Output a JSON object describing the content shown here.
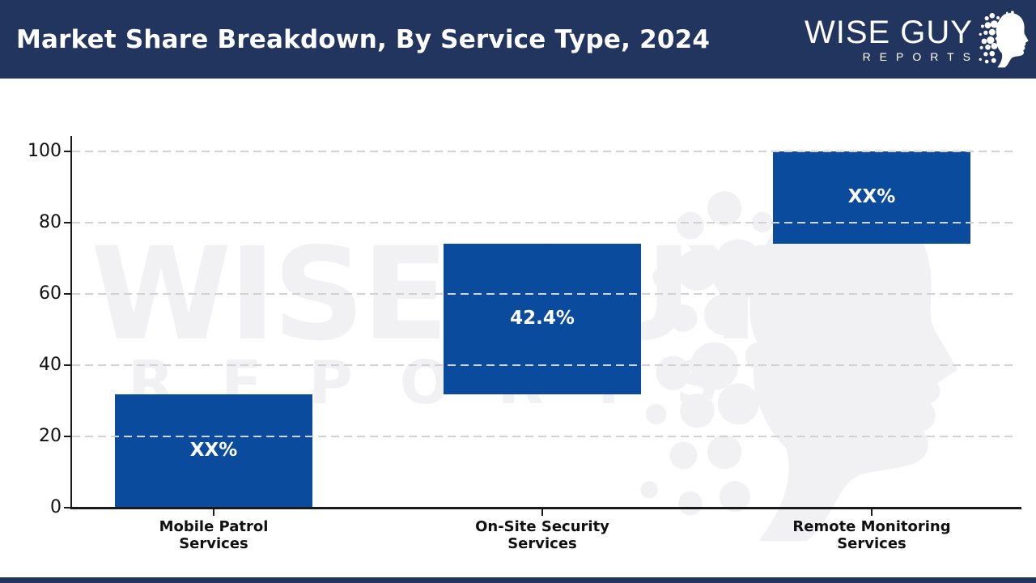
{
  "header": {
    "title": "Market Share Breakdown, By Service Type, 2024",
    "bg_color": "#22355f",
    "logo": {
      "line1": "WISE GUY",
      "line2": "REPORTS"
    }
  },
  "watermark": {
    "line1": "WISE GUY",
    "line2": "REPORTS"
  },
  "chart_data": {
    "type": "bar",
    "variant": "waterfall-stacked-percentage",
    "title": "Market Share Breakdown, By Service Type, 2024",
    "categories": [
      "Mobile Patrol Services",
      "On-Site Security Services",
      "Remote Monitoring Services"
    ],
    "categories_display": [
      [
        "Mobile Patrol",
        "Services"
      ],
      [
        "On-Site Security",
        "Services"
      ],
      [
        "Remote Monitoring",
        "Services"
      ]
    ],
    "segments": [
      {
        "category": "Mobile Patrol Services",
        "start": 0,
        "end": 31.8,
        "height": 31.8,
        "value_label": "XX%"
      },
      {
        "category": "On-Site Security Services",
        "start": 31.8,
        "end": 74.2,
        "height": 42.4,
        "value_label": "42.4%"
      },
      {
        "category": "Remote Monitoring Services",
        "start": 74.2,
        "end": 100,
        "height": 25.8,
        "value_label": "XX%"
      }
    ],
    "xlabel": "",
    "ylabel": "",
    "ylim": [
      0,
      100
    ],
    "yticks": [
      0,
      20,
      40,
      60,
      80,
      100
    ],
    "grid": true,
    "grid_style": "dashed-horizontal-above-bars",
    "legend": false,
    "colors": {
      "bar": "#0a4b9e",
      "bar_label": "#ffffff",
      "axis": "#1a1a1a",
      "grid": "#d2d2d2",
      "tick_label": "#111111",
      "header_navy": "#22355f",
      "watermark": "#f1f1f3"
    }
  }
}
